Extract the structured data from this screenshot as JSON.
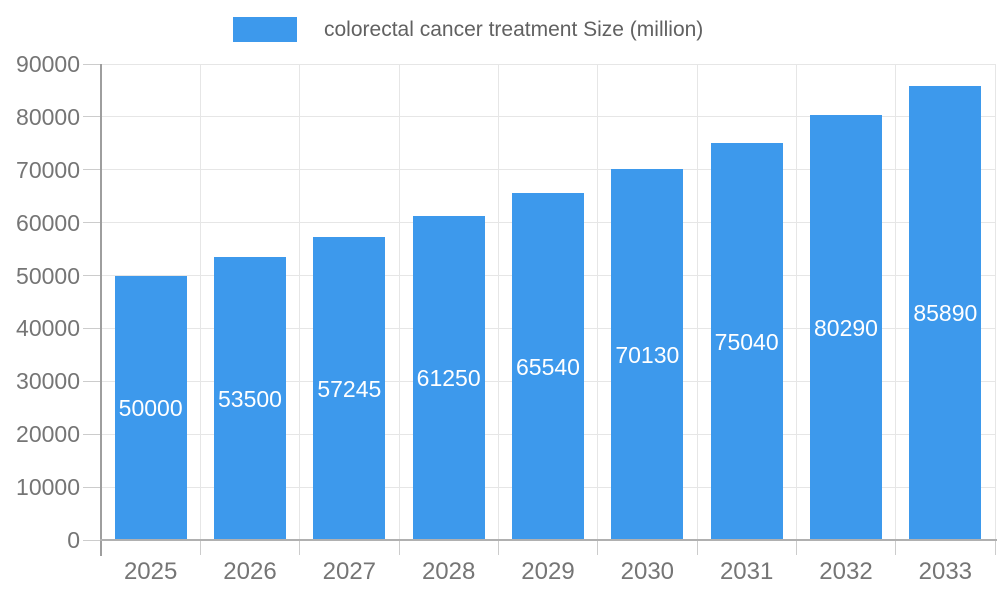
{
  "chart_data": {
    "type": "bar",
    "title": "colorectal cancer treatment Size (million)",
    "categories": [
      "2025",
      "2026",
      "2027",
      "2028",
      "2029",
      "2030",
      "2031",
      "2032",
      "2033"
    ],
    "series": [
      {
        "name": "colorectal cancer treatment Size (million)",
        "values": [
          50000,
          53500,
          57245,
          61250,
          65540,
          70130,
          75040,
          80290,
          85890
        ]
      }
    ],
    "xlabel": "",
    "ylabel": "",
    "ylim": [
      0,
      90000
    ],
    "yticks": [
      0,
      10000,
      20000,
      30000,
      40000,
      50000,
      60000,
      70000,
      80000,
      90000
    ],
    "grid": true,
    "legend_position": "top",
    "value_label_position": "inside-center",
    "colors": {
      "bar": "#3d99ec",
      "value_label": "#ffffff",
      "axis_text": "#757575",
      "legend_text": "#616161",
      "gridline": "#e6e6e6",
      "tick": "#cccccc",
      "axis_line": "#9e9e9e",
      "baseline": "#b0b0b0",
      "background": "#ffffff"
    }
  }
}
